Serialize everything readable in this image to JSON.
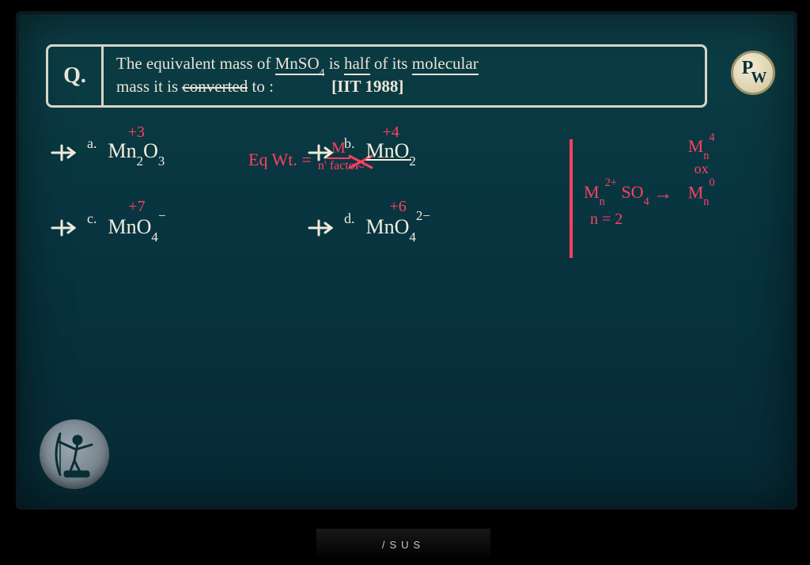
{
  "colors": {
    "board_bg_top": "#0c3d44",
    "board_bg_bottom": "#062a35",
    "frame": "#d8d5c8",
    "text": "#e8e4d6",
    "annotation": "#ff4060",
    "badge_fill": "#f4eed6",
    "badge_border": "#9e9268",
    "archer_bg": "#9aa6b0"
  },
  "badge": {
    "p": "P",
    "w": "W"
  },
  "question": {
    "label": "Q.",
    "line1_a": "The equivalent mass of ",
    "line1_b": "MnSO",
    "line1_b_sub": "4",
    "line1_c": " is ",
    "line1_d": "half",
    "line1_e": " of its ",
    "line1_f": "molecular",
    "line2_a": "mass it is ",
    "line2_b": "converted",
    "line2_c": " to :",
    "tag": "[IIT 1988]"
  },
  "options": {
    "a": {
      "label": "a.",
      "formula_html": "Mn<sub>2</sub>O<sub>3</sub>",
      "ox": "+3"
    },
    "b": {
      "label": "b.",
      "formula_html": "MnO<sub>2</sub>",
      "ox": "+4"
    },
    "c": {
      "label": "c.",
      "formula_html": "MnO<sub>4</sub><sup>−</sup>",
      "ox": "+7"
    },
    "d": {
      "label": "d.",
      "formula_html": "MnO<sub>4</sub><sup>2−</sup>",
      "ox": "+6"
    }
  },
  "annotations": {
    "eq_left": "Eq Wt. =",
    "eq_num": "M",
    "eq_den": "n' factor",
    "side_left": "M",
    "side_left_sub": "n",
    "side_left_sup": "2+",
    "side_mid": "SO",
    "side_mid_sub": "4",
    "side_arrow": "→",
    "side_right": "M",
    "side_right_sub": "n",
    "side_right_sup": "4",
    "n_eq": "n = 2",
    "ox_word": "ox",
    "mn0": "M",
    "mn0_sub": "n",
    "mn0_sup": "0"
  },
  "monitor_brand": "/SUS"
}
